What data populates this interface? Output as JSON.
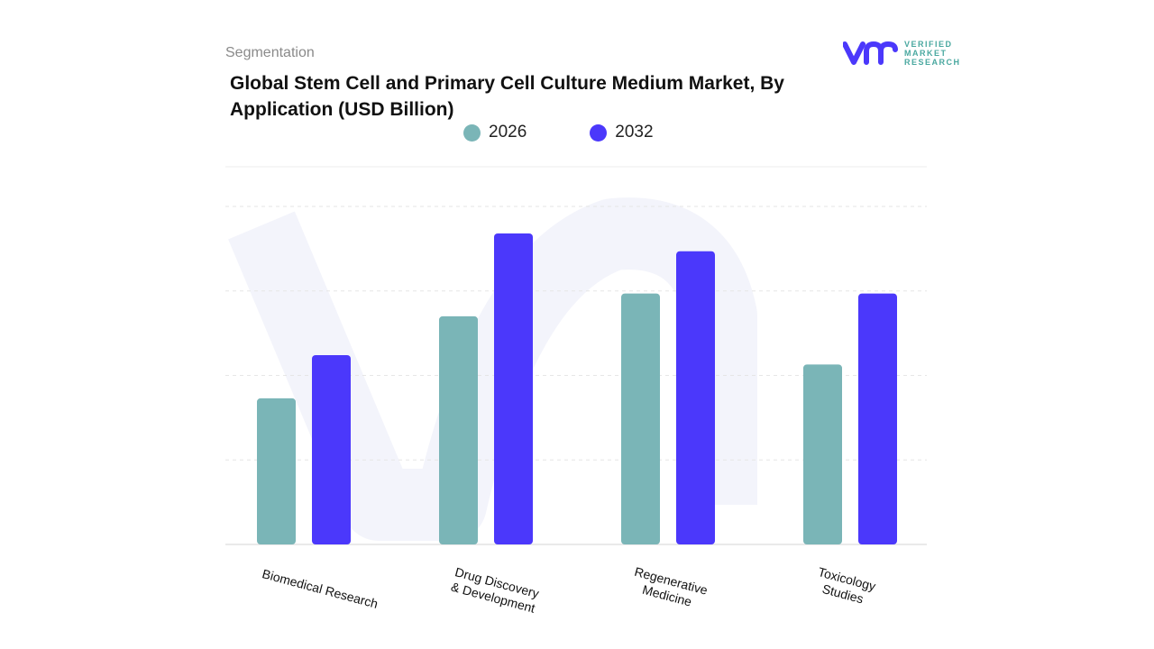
{
  "header": {
    "segment_label": "Segmentation",
    "title": "Global Stem Cell and Primary Cell Culture Medium Market, By Application (USD Billion)",
    "logo": {
      "text_line1": "VERIFIED",
      "text_line2": "MARKET",
      "text_line3": "RESEARCH",
      "mark": "vmr"
    }
  },
  "colors": {
    "series_2026": "#7ab5b7",
    "series_2032": "#4b38fb",
    "grid": "#e6e6e6"
  },
  "chart_data": {
    "type": "bar",
    "title": "Global Stem Cell and Primary Cell Culture Medium Market, By Application (USD Billion)",
    "categories": [
      "Biomedical Research",
      "Drug Discovery & Development",
      "Regenerative Medicine",
      "Toxicology Studies"
    ],
    "series": [
      {
        "name": "2026",
        "values": [
          1.73,
          2.7,
          2.97,
          2.13
        ]
      },
      {
        "name": "2032",
        "values": [
          2.24,
          3.68,
          3.47,
          2.97
        ]
      }
    ],
    "ylim": [
      0,
      4
    ],
    "grid": true,
    "legend": "top-center",
    "xlabel": "",
    "ylabel": ""
  }
}
